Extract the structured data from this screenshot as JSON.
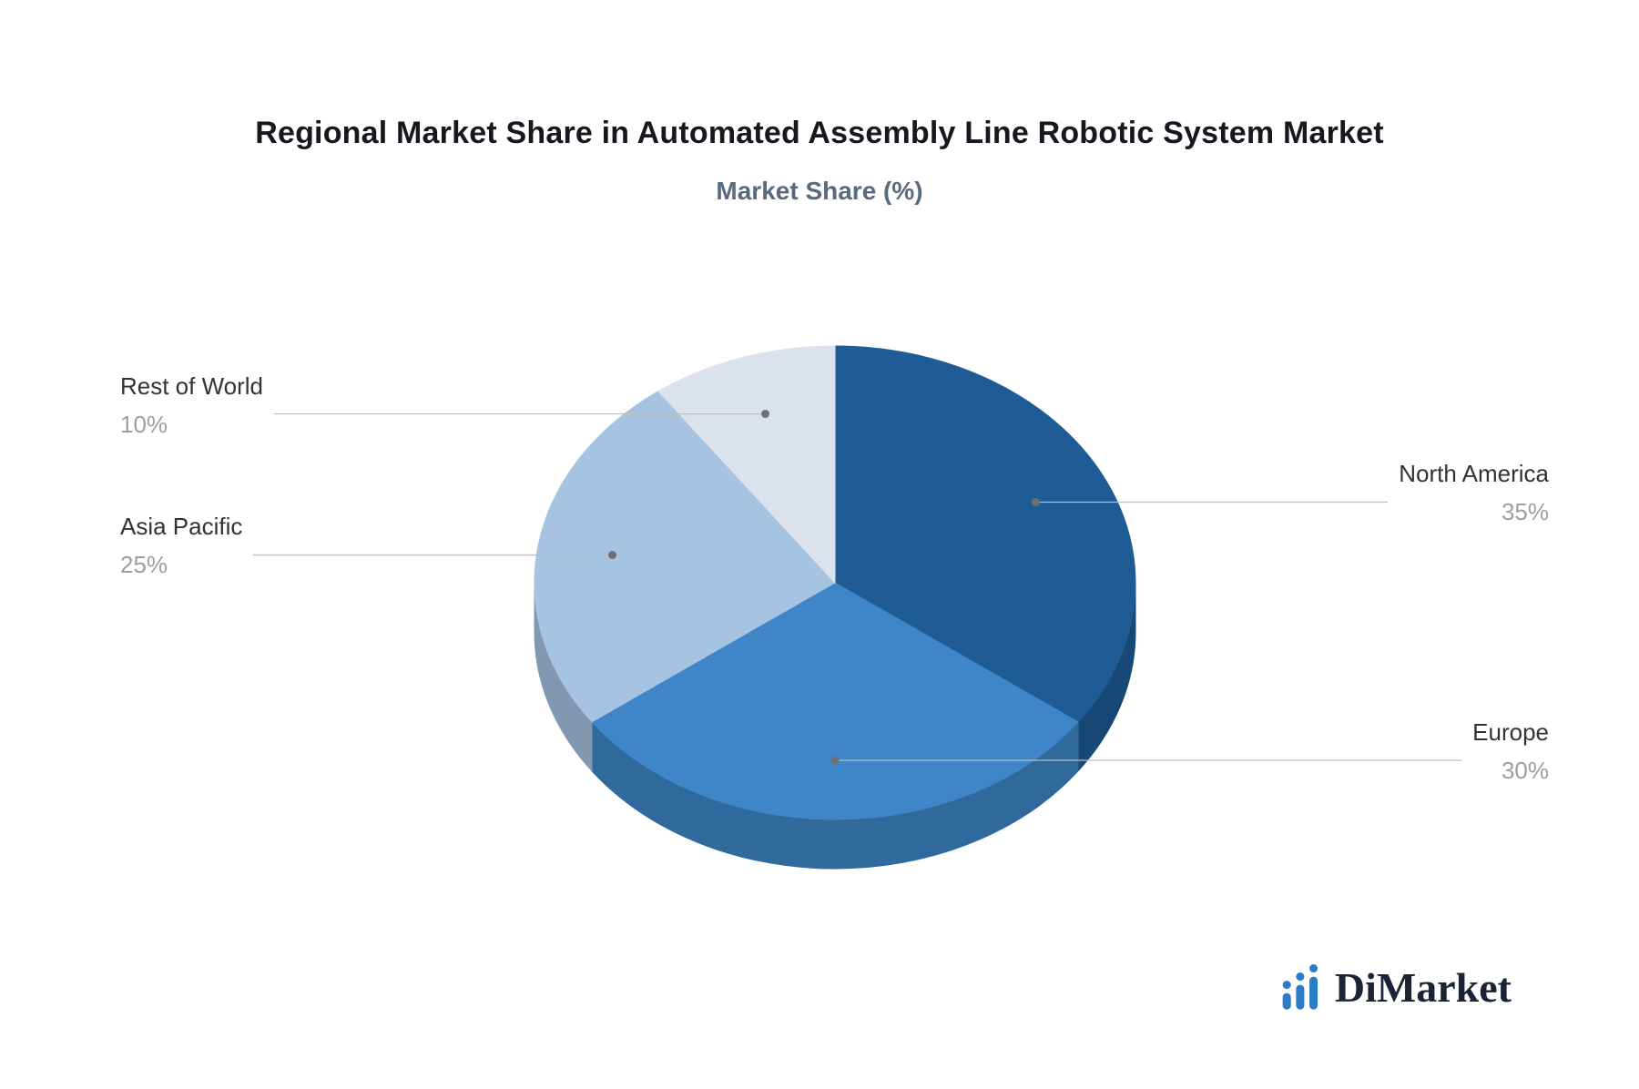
{
  "title": "Regional Market Share in Automated Assembly Line Robotic System Market",
  "subtitle": "Market Share (%)",
  "brand": {
    "name": "DiMarket",
    "icon_color": "#2b7cc4",
    "text_color": "#1b2436"
  },
  "chart_data": {
    "type": "pie",
    "style": "3d",
    "title": "Regional Market Share in Automated Assembly Line Robotic System Market",
    "subtitle": "Market Share (%)",
    "unit": "%",
    "start_angle_deg": 0,
    "direction": "clockwise",
    "legend_position": "none",
    "slices": [
      {
        "name": "North America",
        "value": 35,
        "pct_label": "35%",
        "color": "#1f5c96"
      },
      {
        "name": "Europe",
        "value": 30,
        "pct_label": "30%",
        "color": "#3e86c8"
      },
      {
        "name": "Asia Pacific",
        "value": 25,
        "pct_label": "25%",
        "color": "#a6c3e1"
      },
      {
        "name": "Rest of World",
        "value": 10,
        "pct_label": "10%",
        "color": "#dbe2ec"
      }
    ]
  }
}
